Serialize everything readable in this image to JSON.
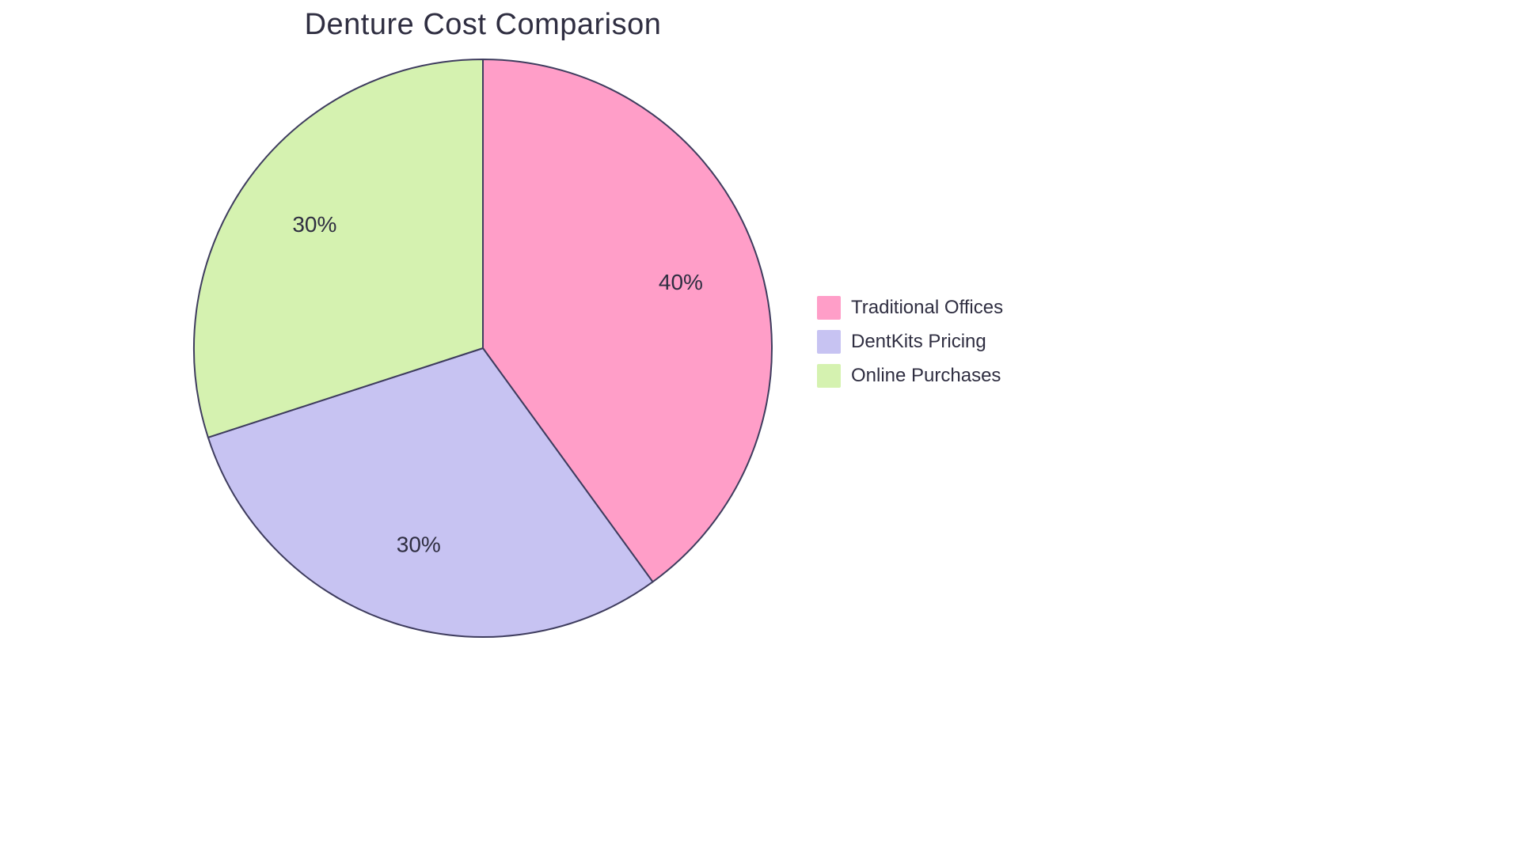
{
  "chart_data": {
    "type": "pie",
    "title": "Denture Cost Comparison",
    "labels": [
      "Traditional Offices",
      "DentKits Pricing",
      "Online Purchases"
    ],
    "values": [
      40,
      30,
      30
    ],
    "value_labels": [
      "40%",
      "30%",
      "30%"
    ],
    "colors": [
      "#FF9EC8",
      "#C7C3F2",
      "#D5F2B0"
    ],
    "stroke_color": "#3E3C5E",
    "text_color": "#2F2E41",
    "background": "#FFFFFF",
    "start_angle_deg": -90,
    "direction": "clockwise",
    "legend_position": "right",
    "label_radius_fraction": 0.72
  }
}
